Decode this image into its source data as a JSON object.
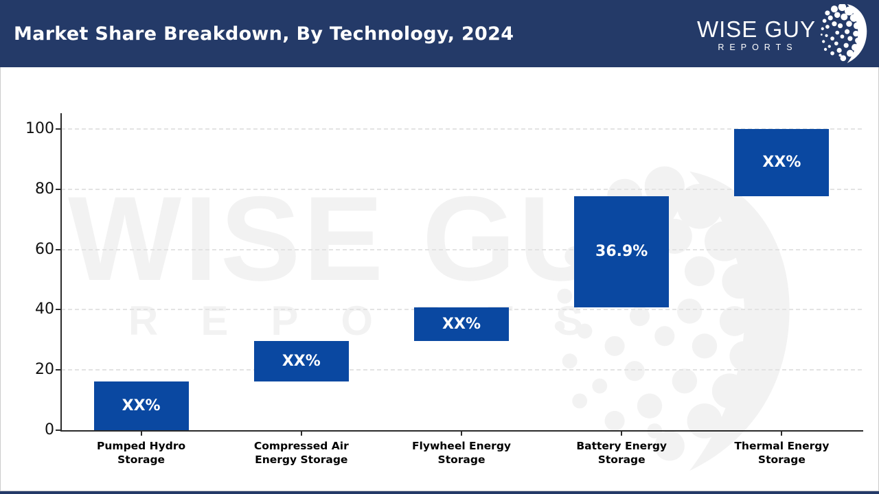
{
  "header": {
    "title": "Market Share Breakdown, By Technology, 2024",
    "logo": {
      "top": "WISE GUY",
      "bottom": "REPORTS",
      "icon": "wiseguy-face-icon"
    }
  },
  "watermark": {
    "line1": "WISE GUY",
    "line2": "REPORTS",
    "icon": "wiseguy-face-watermark-icon"
  },
  "colors": {
    "header_bg": "#243a68",
    "footer_bg": "#243a68",
    "bar": "#0a48a1",
    "bar_label": "#ffffff",
    "grid": "#e3e3e3",
    "axis": "#2a2a2a",
    "tick_label": "#111111"
  },
  "chart_data": {
    "type": "bar",
    "subtype": "waterfall",
    "title": "Market Share Breakdown, By Technology, 2024",
    "categories": [
      "Pumped Hydro Storage",
      "Compressed Air Energy Storage",
      "Flywheel Energy Storage",
      "Battery Energy Storage",
      "Thermal Energy Storage"
    ],
    "category_lines": [
      [
        "Pumped Hydro",
        "Storage"
      ],
      [
        "Compressed Air",
        "Energy Storage"
      ],
      [
        "Flywheel Energy",
        "Storage"
      ],
      [
        "Battery Energy",
        "Storage"
      ],
      [
        "Thermal Energy",
        "Storage"
      ]
    ],
    "segments": [
      {
        "category": "Pumped Hydro Storage",
        "start": 0,
        "end": 16.2,
        "label": "XX%"
      },
      {
        "category": "Compressed Air Energy Storage",
        "start": 16.2,
        "end": 29.5,
        "label": "XX%"
      },
      {
        "category": "Flywheel Energy Storage",
        "start": 29.5,
        "end": 40.8,
        "label": "XX%"
      },
      {
        "category": "Battery Energy Storage",
        "start": 40.8,
        "end": 77.7,
        "label": "36.9%",
        "value": 36.9
      },
      {
        "category": "Thermal Energy Storage",
        "start": 77.7,
        "end": 100,
        "label": "XX%"
      }
    ],
    "ylim": [
      0,
      100
    ],
    "yticks": [
      0,
      20,
      40,
      60,
      80,
      100
    ],
    "grid": "dashed horizontal",
    "legend": null
  }
}
